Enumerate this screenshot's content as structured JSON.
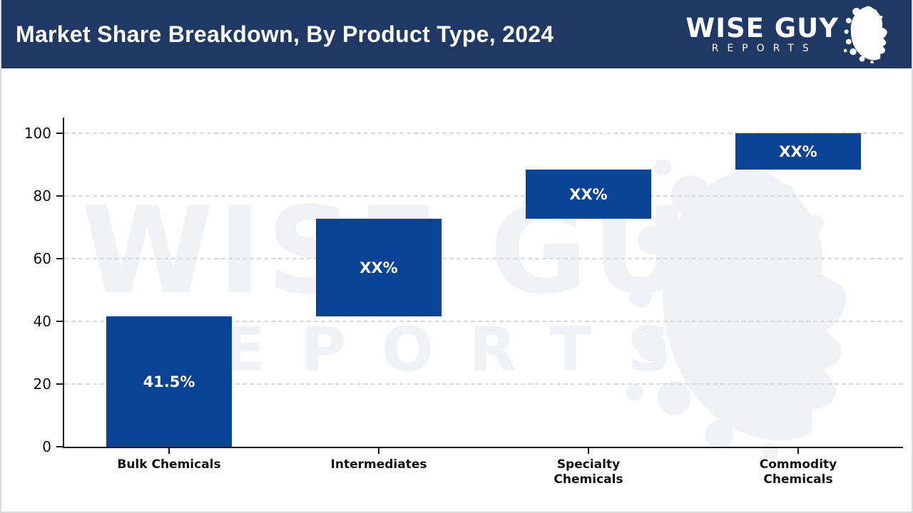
{
  "page": {
    "background": "#ffffff",
    "border_color": "#dcdcdc"
  },
  "header": {
    "background": "#1f3864",
    "title": "Market Share Breakdown, By Product Type, 2024",
    "logo": {
      "wordmark": "WISE GUY",
      "subtext": "REPORTS"
    }
  },
  "watermark": {
    "line1": "WISE GUY",
    "line2": "REPORTS"
  },
  "chart_data": {
    "type": "bar",
    "subtype": "waterfall-floating-bars",
    "title": "Market Share Breakdown, By Product Type, 2024",
    "categories": [
      "Bulk Chemicals",
      "Intermediates",
      "Specialty\nChemicals",
      "Commodity\nChemicals"
    ],
    "segments": [
      {
        "category": "Bulk Chemicals",
        "start": 0,
        "end": 41.5,
        "label": "41.5%"
      },
      {
        "category": "Intermediates",
        "start": 41.5,
        "end": 72.7,
        "label": "XX%"
      },
      {
        "category": "Specialty Chemicals",
        "start": 72.7,
        "end": 88.4,
        "label": "XX%"
      },
      {
        "category": "Commodity Chemicals",
        "start": 88.4,
        "end": 100,
        "label": "XX%"
      }
    ],
    "y_ticks": [
      0,
      20,
      40,
      60,
      80,
      100
    ],
    "ylim": [
      0,
      105
    ],
    "grid": "horizontal-dashed",
    "legend": "none",
    "bar_color": "#0a4296",
    "bar_label_color": "#ffffff",
    "xlabel": "",
    "ylabel": ""
  }
}
